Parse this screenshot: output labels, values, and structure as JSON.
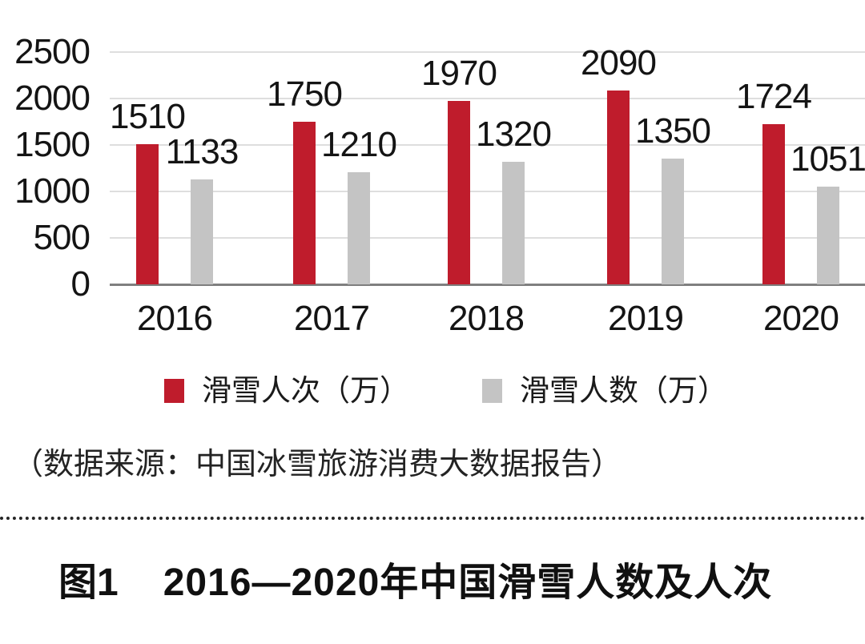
{
  "chart_data": {
    "type": "bar",
    "categories": [
      "2016",
      "2017",
      "2018",
      "2019",
      "2020"
    ],
    "series": [
      {
        "id": "ski-visits",
        "name": "滑雪人次（万）",
        "color": "#bf1c2c",
        "values": [
          1510,
          1750,
          1970,
          2090,
          1724
        ]
      },
      {
        "id": "skier-count",
        "name": "滑雪人数（万）",
        "color": "#c4c4c4",
        "values": [
          1133,
          1210,
          1320,
          1350,
          1051
        ]
      }
    ],
    "ylim": [
      0,
      2500
    ],
    "yticks": [
      0,
      500,
      1000,
      1500,
      2000,
      2500
    ],
    "grid": "horizontal",
    "legend_position": "bottom",
    "value_labels": "above-bars"
  },
  "legend": {
    "item1": "滑雪人次（万）",
    "item2": "滑雪人数（万）"
  },
  "source_note": "（数据来源：中国冰雪旅游消费大数据报告）",
  "caption": {
    "label": "图1",
    "text": "2016—2020年中国滑雪人数及人次"
  },
  "colors": {
    "bar_red": "#bf1c2c",
    "bar_gray": "#c4c4c4",
    "gridline": "#dedede",
    "axis_line": "#7f7f7f",
    "text": "#141414"
  }
}
